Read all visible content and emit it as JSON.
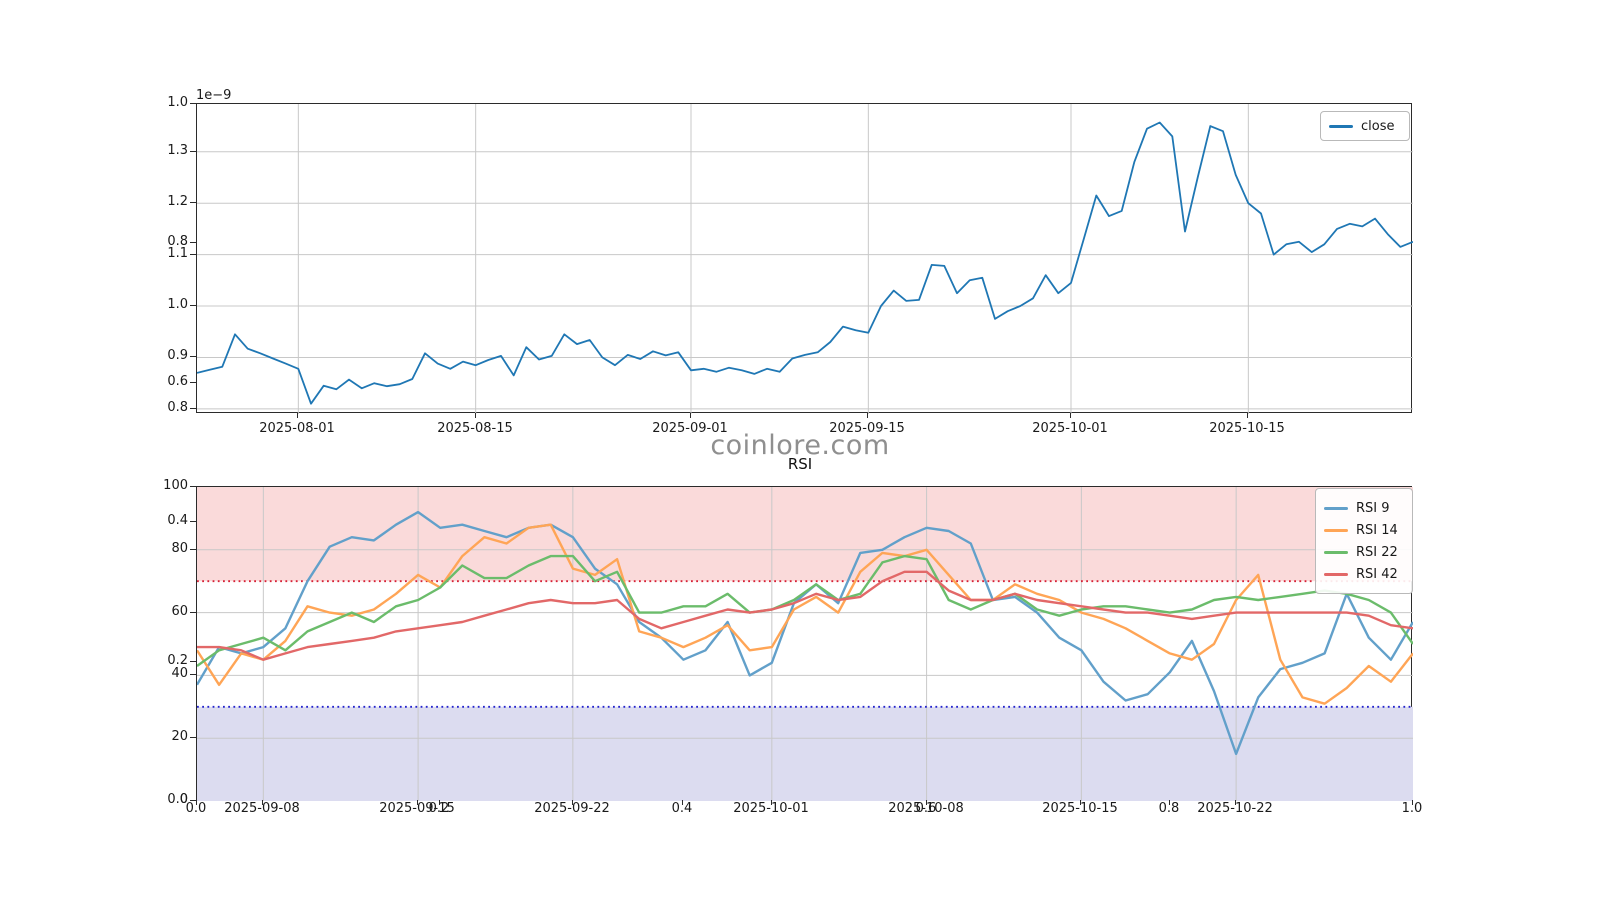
{
  "watermark": "coinlore.com",
  "chart_data": [
    {
      "id": "price",
      "type": "line",
      "legend_label": "close",
      "offset_label": "1e−9",
      "unit_multiplier": "1e-9",
      "ylim": [
        0.79,
        1.393
      ],
      "y_ticks": [
        "0.8",
        "0.9",
        "1.0",
        "1.1",
        "1.2",
        "1.3"
      ],
      "x_ticks": [
        {
          "label": "2025-08-01",
          "day": 8
        },
        {
          "label": "2025-08-15",
          "day": 22
        },
        {
          "label": "2025-09-01",
          "day": 39
        },
        {
          "label": "2025-09-15",
          "day": 53
        },
        {
          "label": "2025-10-01",
          "day": 69
        },
        {
          "label": "2025-10-15",
          "day": 83
        }
      ],
      "dates": {
        "start": "2025-07-24",
        "end": "2025-10-28",
        "step_days": 1,
        "count": 97
      },
      "series": [
        {
          "name": "close",
          "color": "#1f77b4",
          "values": [
            0.87,
            0.876,
            0.882,
            0.945,
            0.917,
            0.908,
            0.898,
            0.888,
            0.878,
            0.81,
            0.845,
            0.838,
            0.857,
            0.84,
            0.85,
            0.844,
            0.848,
            0.858,
            0.908,
            0.888,
            0.878,
            0.892,
            0.885,
            0.895,
            0.903,
            0.865,
            0.92,
            0.896,
            0.903,
            0.945,
            0.926,
            0.934,
            0.9,
            0.885,
            0.905,
            0.897,
            0.912,
            0.904,
            0.91,
            0.875,
            0.878,
            0.872,
            0.88,
            0.875,
            0.868,
            0.878,
            0.872,
            0.898,
            0.905,
            0.91,
            0.93,
            0.96,
            0.953,
            0.948,
            1.0,
            1.03,
            1.01,
            1.012,
            1.08,
            1.078,
            1.025,
            1.05,
            1.055,
            0.975,
            0.99,
            1.0,
            1.015,
            1.06,
            1.025,
            1.045,
            1.13,
            1.215,
            1.175,
            1.185,
            1.28,
            1.345,
            1.357,
            1.33,
            1.145,
            1.25,
            1.35,
            1.34,
            1.255,
            1.2,
            1.18,
            1.1,
            1.12,
            1.125,
            1.105,
            1.12,
            1.15,
            1.16,
            1.155,
            1.17,
            1.14,
            1.115,
            1.125
          ]
        }
      ],
      "grid": true,
      "legend_position": "upper right"
    },
    {
      "id": "rsi",
      "type": "line",
      "title": "RSI",
      "ylim": [
        0,
        100
      ],
      "y_ticks": [
        "0",
        "20",
        "40",
        "60",
        "80",
        "100"
      ],
      "overbought_level": 70,
      "oversold_level": 30,
      "overbought_band_color": "#fadada",
      "oversold_band_color": "#dcdcf0",
      "overbought_line_color": "#d62035",
      "oversold_line_color": "#2222cc",
      "x_ticks": [
        {
          "label": "2025-09-08",
          "day": 3
        },
        {
          "label": "2025-09-15",
          "day": 10
        },
        {
          "label": "2025-09-22",
          "day": 17
        },
        {
          "label": "2025-10-01",
          "day": 26
        },
        {
          "label": "2025-10-08",
          "day": 33
        },
        {
          "label": "2025-10-15",
          "day": 40
        },
        {
          "label": "2025-10-22",
          "day": 47
        }
      ],
      "dates": {
        "start": "2025-09-05",
        "end": "2025-10-30",
        "step_days": 1,
        "count": 56
      },
      "series": [
        {
          "name": "RSI 9",
          "color": "#62a0ca",
          "values": [
            37,
            49,
            47,
            49,
            55,
            70,
            81,
            84,
            83,
            88,
            92,
            87,
            88,
            86,
            84,
            87,
            88,
            84,
            74,
            69,
            57,
            52,
            45,
            48,
            57,
            40,
            44,
            63,
            69,
            63,
            79,
            80,
            84,
            87,
            86,
            82,
            64,
            65,
            60,
            52,
            48,
            38,
            32,
            34,
            41,
            51,
            35,
            15,
            33,
            42,
            44,
            47,
            66,
            52,
            45,
            57
          ]
        },
        {
          "name": "RSI 14",
          "color": "#ffa556",
          "values": [
            48,
            37,
            47,
            45,
            51,
            62,
            60,
            59,
            61,
            66,
            72,
            68,
            78,
            84,
            82,
            87,
            88,
            74,
            72,
            77,
            54,
            52,
            49,
            52,
            56,
            48,
            49,
            61,
            65,
            60,
            73,
            79,
            78,
            80,
            72,
            64,
            64,
            69,
            66,
            64,
            60,
            58,
            55,
            51,
            47,
            45,
            50,
            64,
            72,
            45,
            33,
            31,
            36,
            43,
            38,
            47
          ]
        },
        {
          "name": "RSI 22",
          "color": "#6bbc6b",
          "values": [
            43,
            48,
            50,
            52,
            48,
            54,
            57,
            60,
            57,
            62,
            64,
            68,
            75,
            71,
            71,
            75,
            78,
            78,
            70,
            73,
            60,
            60,
            62,
            62,
            66,
            60,
            61,
            64,
            69,
            64,
            66,
            76,
            78,
            77,
            64,
            61,
            64,
            66,
            61,
            59,
            61,
            62,
            62,
            61,
            60,
            61,
            64,
            65,
            64,
            65,
            66,
            67,
            66,
            64,
            60,
            50
          ]
        },
        {
          "name": "RSI 42",
          "color": "#e26868",
          "values": [
            49,
            49,
            48,
            45,
            47,
            49,
            50,
            51,
            52,
            54,
            55,
            56,
            57,
            59,
            61,
            63,
            64,
            63,
            63,
            64,
            58,
            55,
            57,
            59,
            61,
            60,
            61,
            63,
            66,
            64,
            65,
            70,
            73,
            73,
            67,
            64,
            64,
            66,
            64,
            63,
            62,
            61,
            60,
            60,
            59,
            58,
            59,
            60,
            60,
            60,
            60,
            60,
            60,
            59,
            56,
            55
          ]
        }
      ],
      "grid": true,
      "legend_position": "upper right"
    }
  ],
  "overlay_axis": {
    "x_ticks": [
      "0.0",
      "0.2",
      "0.4",
      "0.6",
      "0.8",
      "1.0"
    ],
    "y_ticks": [
      "0.0",
      "0.2",
      "0.4",
      "0.6",
      "0.8",
      "1.0"
    ]
  },
  "style": {
    "grid_color": "#c8c8c8",
    "spine_color": "#2b2b2b",
    "close_line_color": "#1f77b4"
  }
}
